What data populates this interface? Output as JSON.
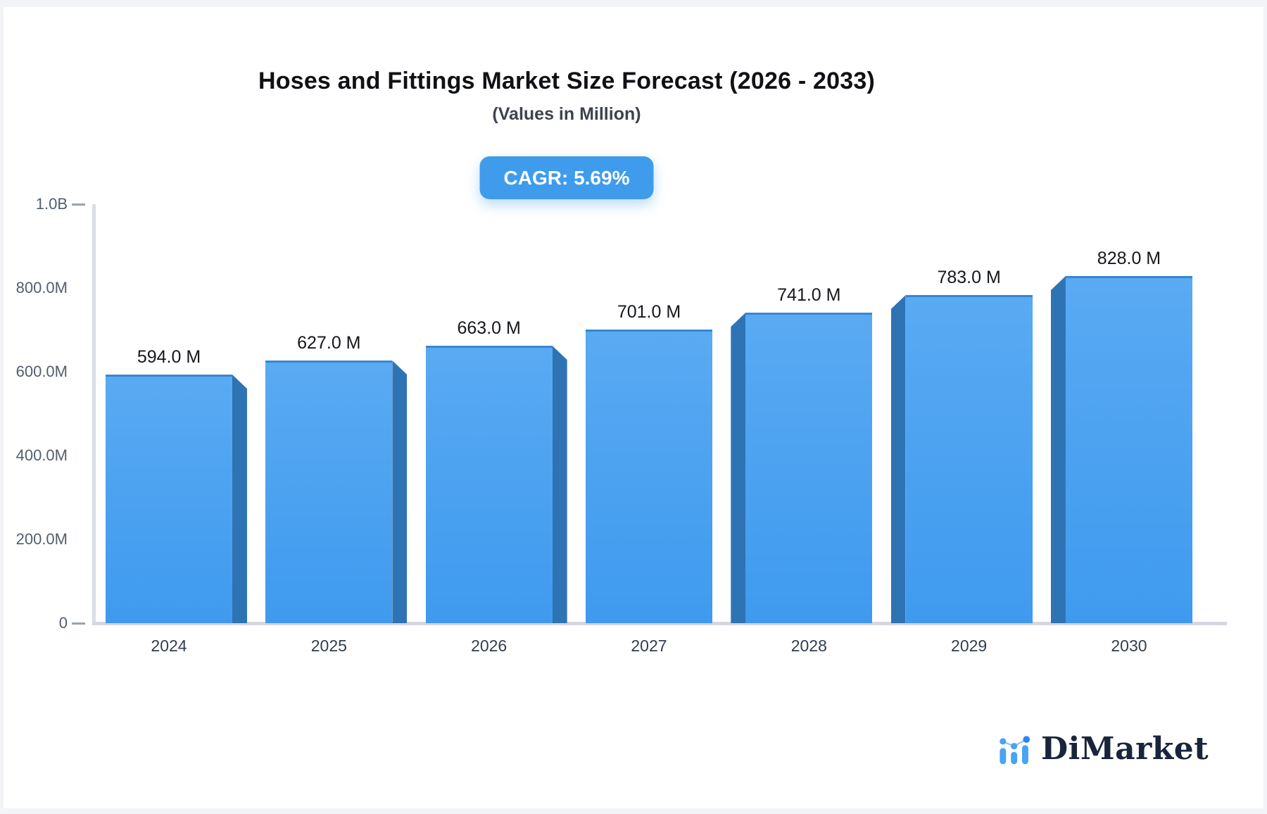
{
  "header": {
    "title": "Hoses and Fittings Market Size Forecast (2026 - 2033)",
    "subtitle": "(Values in Million)",
    "cagr_badge": "CAGR: 5.69%"
  },
  "chart_data": {
    "type": "bar",
    "title": "Hoses and Fittings Market Size Forecast (2026 - 2033)",
    "subtitle": "(Values in Million)",
    "unit": "Million",
    "categories": [
      "2024",
      "2025",
      "2026",
      "2027",
      "2028",
      "2029",
      "2030"
    ],
    "values": [
      594.0,
      627.0,
      663.0,
      701.0,
      741.0,
      783.0,
      828.0
    ],
    "value_labels": [
      "594.0 M",
      "627.0 M",
      "663.0 M",
      "701.0 M",
      "741.0 M",
      "783.0 M",
      "828.0 M"
    ],
    "cagr_label": "CAGR: 5.69%",
    "ylim": [
      0,
      1000
    ],
    "y_ticks": [
      {
        "label": "1.0B",
        "value": 1000,
        "dash": true
      },
      {
        "label": "800.0M",
        "value": 800,
        "dash": false
      },
      {
        "label": "600.0M",
        "value": 600,
        "dash": false
      },
      {
        "label": "400.0M",
        "value": 400,
        "dash": false
      },
      {
        "label": "200.0M",
        "value": 200,
        "dash": false
      },
      {
        "label": "0",
        "value": 0,
        "dash": true
      }
    ],
    "grid": false,
    "legend": false,
    "colors": {
      "bar_face_top": "#59aaf2",
      "bar_face_bottom": "#3f9aef",
      "bar_side": "#2e73b4",
      "badge_background": "#3f9cec",
      "axis_line": "#d6dade"
    }
  },
  "logo": {
    "text": "DiMarket",
    "icon": "bar-chart-logo-icon",
    "icon_color": "#4aa3f4",
    "text_color": "#18253a"
  }
}
